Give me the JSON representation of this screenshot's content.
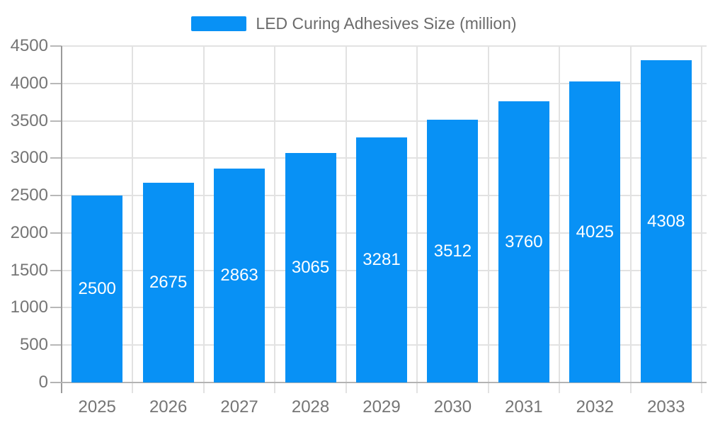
{
  "legend": {
    "label": "LED Curing Adhesives Size (million)"
  },
  "colors": {
    "bar": "#0891f5",
    "grid": "#e2e2e2",
    "y_axis": "#9b9b9b",
    "x_axis": "#b3b3b3",
    "axis_label": "#757575",
    "legend_text": "#6b6b6b",
    "bar_label": "#ffffff",
    "background": "#ffffff"
  },
  "chart_data": {
    "type": "bar",
    "title": "LED Curing Adhesives Size (million)",
    "categories": [
      "2025",
      "2026",
      "2027",
      "2028",
      "2029",
      "2030",
      "2031",
      "2032",
      "2033"
    ],
    "values": [
      2500,
      2675,
      2863,
      3065,
      3281,
      3512,
      3760,
      4025,
      4308
    ],
    "xlabel": "",
    "ylabel": "",
    "ylim": [
      0,
      4500
    ],
    "ytick_step": 500,
    "yticks": [
      0,
      500,
      1000,
      1500,
      2000,
      2500,
      3000,
      3500,
      4000,
      4500
    ],
    "grid": true,
    "legend_position": "top-center",
    "bar_label_position": "inside-center"
  }
}
